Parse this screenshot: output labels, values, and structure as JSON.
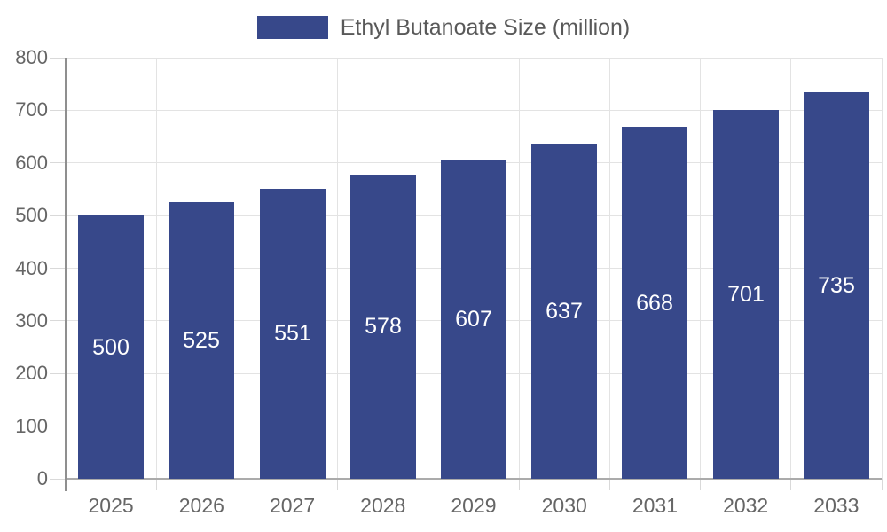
{
  "legend": {
    "label": "Ethyl Butanoate Size (million)"
  },
  "chart_data": {
    "type": "bar",
    "title": "",
    "xlabel": "",
    "ylabel": "",
    "categories": [
      "2025",
      "2026",
      "2027",
      "2028",
      "2029",
      "2030",
      "2031",
      "2032",
      "2033"
    ],
    "series": [
      {
        "name": "Ethyl Butanoate Size (million)",
        "values": [
          500,
          525,
          551,
          578,
          607,
          637,
          668,
          701,
          735
        ]
      }
    ],
    "ylim": [
      0,
      800
    ],
    "ytick_step": 100,
    "yticks": [
      0,
      100,
      200,
      300,
      400,
      500,
      600,
      700,
      800
    ],
    "grid": true,
    "legend_position": "top-center",
    "value_labels": "inside-center",
    "colors": {
      "bar": "#37488a",
      "value_label": "#ffffff",
      "grid": "#e3e3e3",
      "tick_mark": "#d9d9d9",
      "axis_line": "#8f8f8f",
      "baseline": "#ababab",
      "tick_text": "#666666",
      "legend_text": "#595959",
      "background": "#ffffff"
    }
  }
}
